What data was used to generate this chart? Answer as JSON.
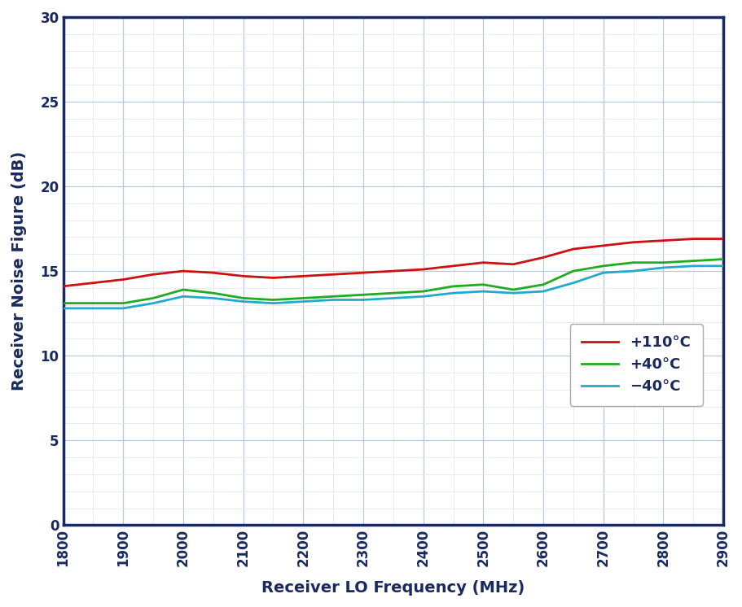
{
  "title": "",
  "xlabel": "Receiver LO Frequency (MHz)",
  "ylabel": "Receiver Noise Figure (dB)",
  "xlim": [
    1800,
    2900
  ],
  "ylim": [
    0,
    30
  ],
  "xticks": [
    1800,
    1900,
    2000,
    2100,
    2200,
    2300,
    2400,
    2500,
    2600,
    2700,
    2800,
    2900
  ],
  "yticks": [
    0,
    5,
    10,
    15,
    20,
    25,
    30
  ],
  "plot_bg_color": "#ffffff",
  "fig_bg_color": "#ffffff",
  "major_grid_color": "#b8c8d8",
  "minor_grid_color": "#dce8f0",
  "x": [
    1800,
    1850,
    1900,
    1950,
    2000,
    2050,
    2100,
    2150,
    2200,
    2250,
    2300,
    2350,
    2400,
    2450,
    2500,
    2550,
    2600,
    2650,
    2700,
    2750,
    2800,
    2850,
    2900
  ],
  "red_y": [
    14.1,
    14.3,
    14.5,
    14.8,
    15.0,
    14.9,
    14.7,
    14.6,
    14.7,
    14.8,
    14.9,
    15.0,
    15.1,
    15.3,
    15.5,
    15.4,
    15.8,
    16.3,
    16.5,
    16.7,
    16.8,
    16.9,
    16.9
  ],
  "green_y": [
    13.1,
    13.1,
    13.1,
    13.4,
    13.9,
    13.7,
    13.4,
    13.3,
    13.4,
    13.5,
    13.6,
    13.7,
    13.8,
    14.1,
    14.2,
    13.9,
    14.2,
    15.0,
    15.3,
    15.5,
    15.5,
    15.6,
    15.7
  ],
  "cyan_y": [
    12.8,
    12.8,
    12.8,
    13.1,
    13.5,
    13.4,
    13.2,
    13.1,
    13.2,
    13.3,
    13.3,
    13.4,
    13.5,
    13.7,
    13.8,
    13.7,
    13.8,
    14.3,
    14.9,
    15.0,
    15.2,
    15.3,
    15.3
  ],
  "red_color": "#cc1111",
  "green_color": "#22aa22",
  "cyan_color": "#22aacc",
  "legend_labels": [
    "+110°C",
    "+40°C",
    "−40°C"
  ],
  "line_width": 2.0,
  "axis_color": "#1a2a5e",
  "tick_label_color": "#1a2a5e",
  "label_fontsize": 14,
  "tick_fontsize": 12,
  "legend_fontsize": 13,
  "spine_linewidth": 2.5
}
